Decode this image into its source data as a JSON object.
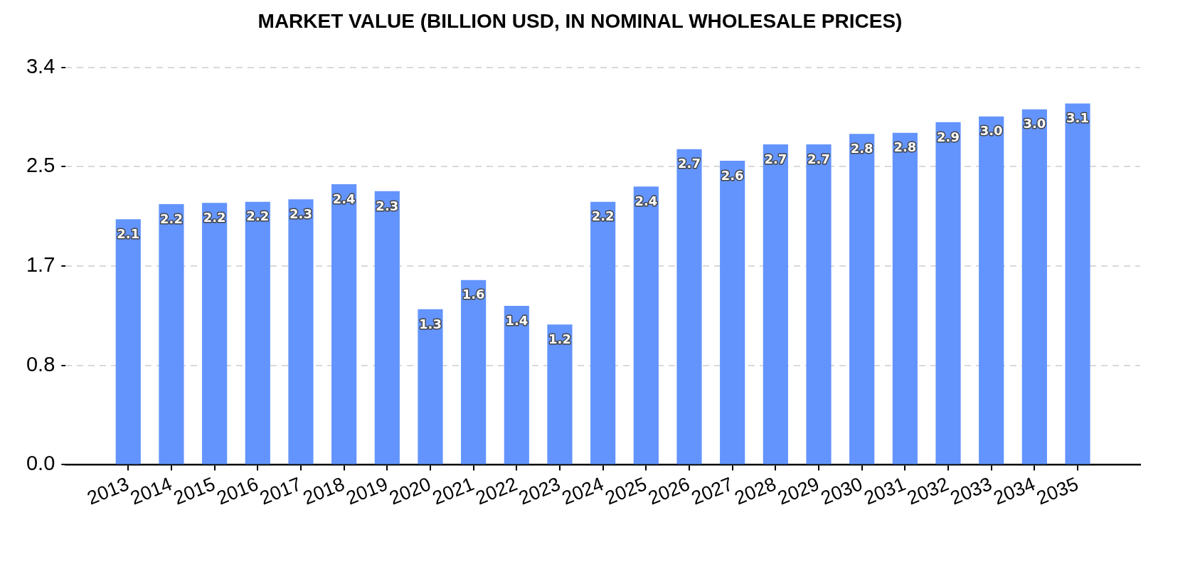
{
  "chart_data": {
    "type": "bar",
    "title": "MARKET VALUE (BILLION USD, IN NOMINAL WHOLESALE PRICES)",
    "categories": [
      "2013",
      "2014",
      "2015",
      "2016",
      "2017",
      "2018",
      "2019",
      "2020",
      "2021",
      "2022",
      "2023",
      "2024",
      "2025",
      "2026",
      "2027",
      "2028",
      "2029",
      "2030",
      "2031",
      "2032",
      "2033",
      "2034",
      "2035"
    ],
    "values": [
      2.1,
      2.23,
      2.24,
      2.25,
      2.27,
      2.4,
      2.34,
      1.33,
      1.58,
      1.36,
      1.2,
      2.25,
      2.38,
      2.7,
      2.6,
      2.74,
      2.74,
      2.83,
      2.84,
      2.93,
      2.98,
      3.04,
      3.09
    ],
    "value_labels": [
      "2.1",
      "2.2",
      "2.2",
      "2.2",
      "2.3",
      "2.4",
      "2.3",
      "1.3",
      "1.6",
      "1.4",
      "1.2",
      "2.2",
      "2.4",
      "2.7",
      "2.6",
      "2.7",
      "2.7",
      "2.8",
      "2.8",
      "2.9",
      "3.0",
      "3.0",
      "3.1"
    ],
    "color": "#6394fd",
    "ylim": [
      0,
      3.4
    ],
    "yticks": [
      {
        "value": 0,
        "label": "0.0"
      },
      {
        "value": 0.85,
        "label": "0.8"
      },
      {
        "value": 1.7,
        "label": "1.7"
      },
      {
        "value": 2.55,
        "label": "2.5"
      },
      {
        "value": 3.4,
        "label": "3.4"
      }
    ],
    "grid": "y"
  }
}
